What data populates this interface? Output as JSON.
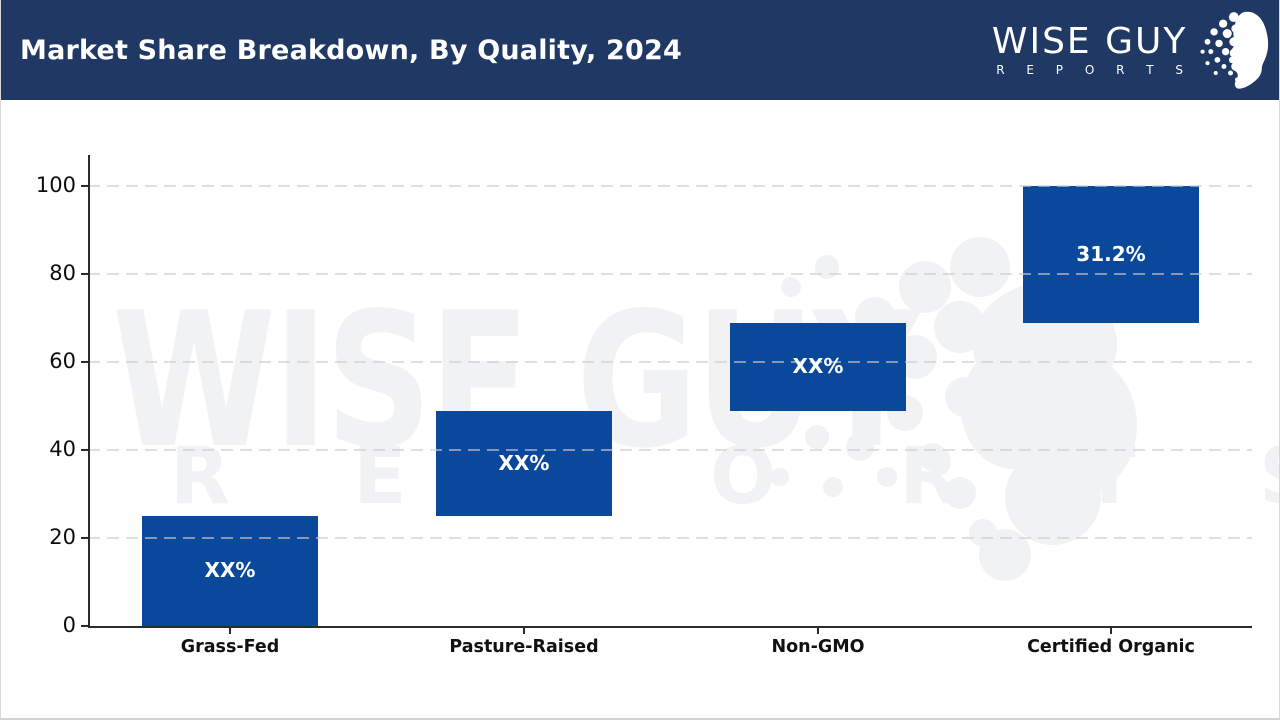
{
  "header": {
    "title": "Market Share Breakdown, By Quality, 2024",
    "background_color": "#1f3864",
    "logo": {
      "line1": "WISE GUY",
      "line2": "R E P O R T S",
      "head_icon": "dotted-face-profile"
    }
  },
  "watermark": {
    "line1": "WISE GUY",
    "line2": "R E P O R T S",
    "head_icon": "dotted-face-profile",
    "color": "#f1f2f4"
  },
  "chart_data": {
    "type": "bar",
    "subtype": "floating-segment-breakdown",
    "title": "Market Share Breakdown, By Quality, 2024",
    "categories": [
      "Grass-Fed",
      "Pasture-Raised",
      "Non-GMO",
      "Certified Organic"
    ],
    "series": [
      {
        "name": "Market Share (%)",
        "segments": [
          {
            "category": "Grass-Fed",
            "start": 0,
            "end": 25,
            "value": 25,
            "label": "XX%"
          },
          {
            "category": "Pasture-Raised",
            "start": 25,
            "end": 48.8,
            "value": 23.8,
            "label": "XX%"
          },
          {
            "category": "Non-GMO",
            "start": 48.8,
            "end": 68.8,
            "value": 20,
            "label": "XX%"
          },
          {
            "category": "Certified Organic",
            "start": 68.8,
            "end": 100,
            "value": 31.2,
            "label": "31.2%"
          }
        ]
      }
    ],
    "xlabel": "",
    "ylabel": "",
    "ylim": [
      0,
      105
    ],
    "yticks": [
      0,
      20,
      40,
      60,
      80,
      100
    ],
    "grid": "horizontal-dashed",
    "legend": "none",
    "bar_color": "#0a489c",
    "bar_label_color": "#ffffff",
    "axis_color": "#2b2b2b",
    "grid_color": "#d9d9d9",
    "tick_label_color": "#0d0d0d"
  }
}
